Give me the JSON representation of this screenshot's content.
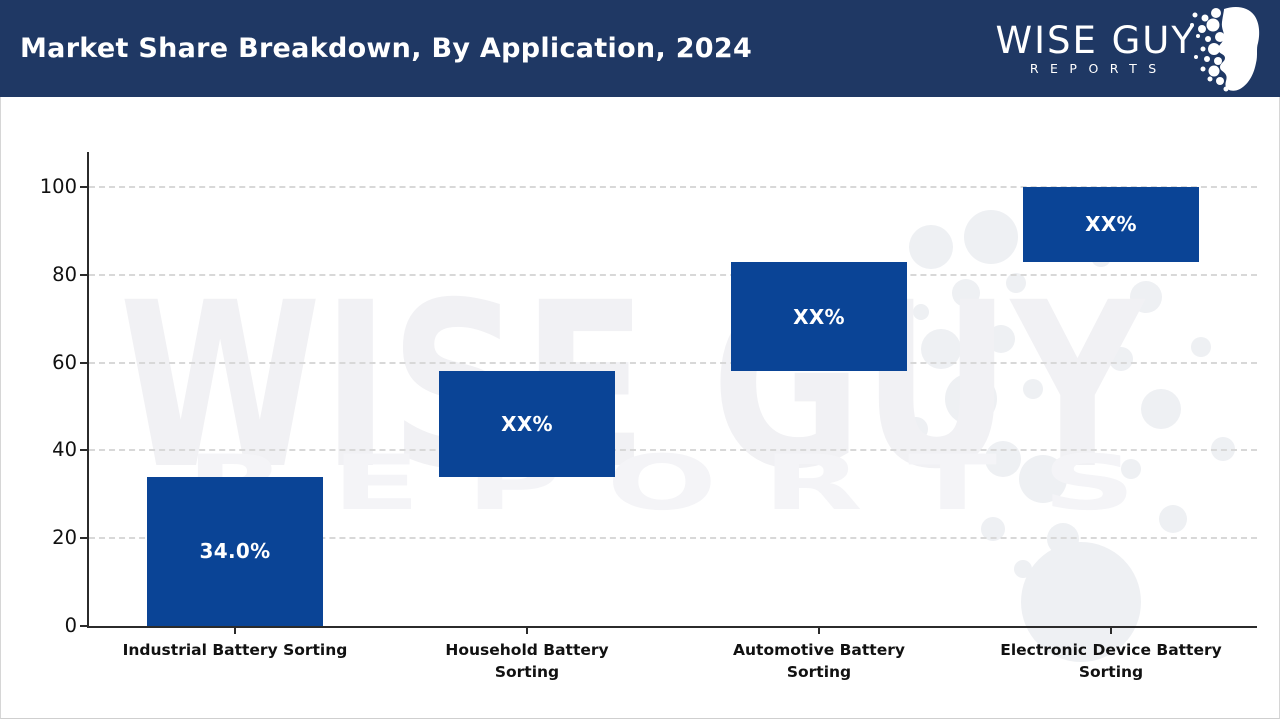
{
  "header": {
    "title": "Market Share Breakdown, By Application, 2024",
    "bg_color": "#1f3864",
    "logo": {
      "line1": "WISE GUY",
      "line2": "REPORTS"
    }
  },
  "chart_data": {
    "type": "bar",
    "subtype": "floating-segment-waterfall",
    "title": "Market Share Breakdown, By Application, 2024",
    "categories": [
      "Industrial Battery Sorting",
      "Household Battery Sorting",
      "Automotive Battery Sorting",
      "Electronic Device Battery Sorting"
    ],
    "segments": [
      {
        "category": "Industrial Battery Sorting",
        "start": 0,
        "end": 34,
        "size": 34,
        "label": "34.0%"
      },
      {
        "category": "Household Battery Sorting",
        "start": 34,
        "end": 58,
        "size": 24,
        "label": "XX%"
      },
      {
        "category": "Automotive Battery Sorting",
        "start": 58,
        "end": 83,
        "size": 25,
        "label": "XX%"
      },
      {
        "category": "Electronic Device Battery Sorting",
        "start": 83,
        "end": 100,
        "size": 17,
        "label": "XX%"
      }
    ],
    "ylim": [
      0,
      100
    ],
    "yticks": [
      0,
      20,
      40,
      60,
      80,
      100
    ],
    "xlabel": "",
    "ylabel": "",
    "grid": "horizontal-dashed",
    "legend": "none",
    "bar_color": "#0a4496",
    "bar_label_color": "#ffffff",
    "watermark": {
      "line1": "WISE GUY",
      "line2": "R E P O R T S"
    }
  }
}
